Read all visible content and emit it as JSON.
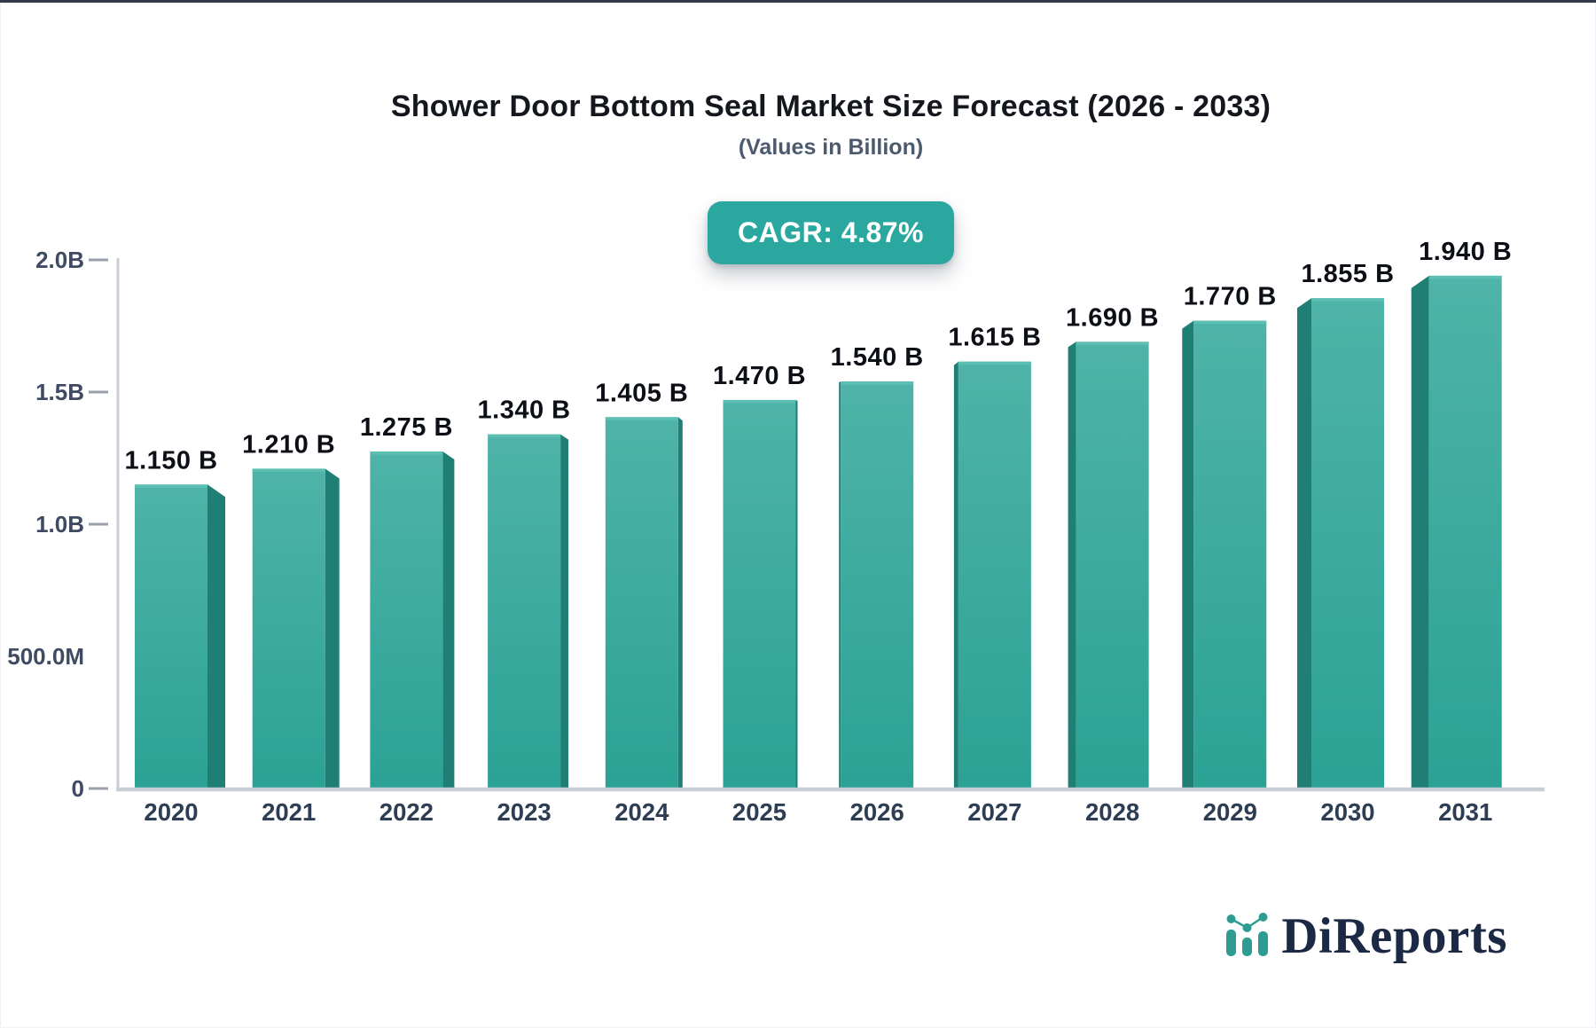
{
  "title": "Shower Door Bottom Seal Market Size Forecast (2026 - 2033)",
  "subtitle": "(Values in Billion)",
  "badge": {
    "label": "CAGR: 4.87%"
  },
  "logo": {
    "text": "DiReports"
  },
  "chart_data": {
    "type": "bar",
    "title": "Shower Door Bottom Seal Market Size Forecast (2026 - 2033)",
    "subtitle": "(Values in Billion)",
    "categories": [
      "2020",
      "2021",
      "2022",
      "2023",
      "2024",
      "2025",
      "2026",
      "2027",
      "2028",
      "2029",
      "2030",
      "2031"
    ],
    "values": [
      1.15,
      1.21,
      1.275,
      1.34,
      1.405,
      1.47,
      1.54,
      1.615,
      1.69,
      1.77,
      1.855,
      1.94
    ],
    "value_labels": [
      "1.150 B",
      "1.210 B",
      "1.275 B",
      "1.340 B",
      "1.405 B",
      "1.470 B",
      "1.540 B",
      "1.615 B",
      "1.690 B",
      "1.770 B",
      "1.855 B",
      "1.940 B"
    ],
    "xlabel": "",
    "ylabel": "",
    "ylim": [
      0,
      2.0
    ],
    "grid": false,
    "legend": false,
    "y_ticks": [
      {
        "label": "2.0B",
        "value": 2.0,
        "dash": true
      },
      {
        "label": "1.5B",
        "value": 1.5,
        "dash": true
      },
      {
        "label": "1.0B",
        "value": 1.0,
        "dash": true
      },
      {
        "label": "500.0M",
        "value": 0.5,
        "dash": false
      },
      {
        "label": "0",
        "value": 0.0,
        "dash": true
      }
    ],
    "colors": {
      "bar_face_top": "#4FB3A8",
      "bar_face_bottom": "#2BA295",
      "bar_side": "#1F7F75",
      "bar_top_band": "#5EC0B4",
      "axis_line": "#C9CDD5",
      "tick_dash": "#99A0AC",
      "tick_label": "#3E4B63",
      "year_label": "#2D3D53",
      "value_label": "#0C0F15",
      "badge_bg": "#2AA79E",
      "logo_navy": "#1B2944",
      "logo_teal": "#2E9C93"
    }
  }
}
